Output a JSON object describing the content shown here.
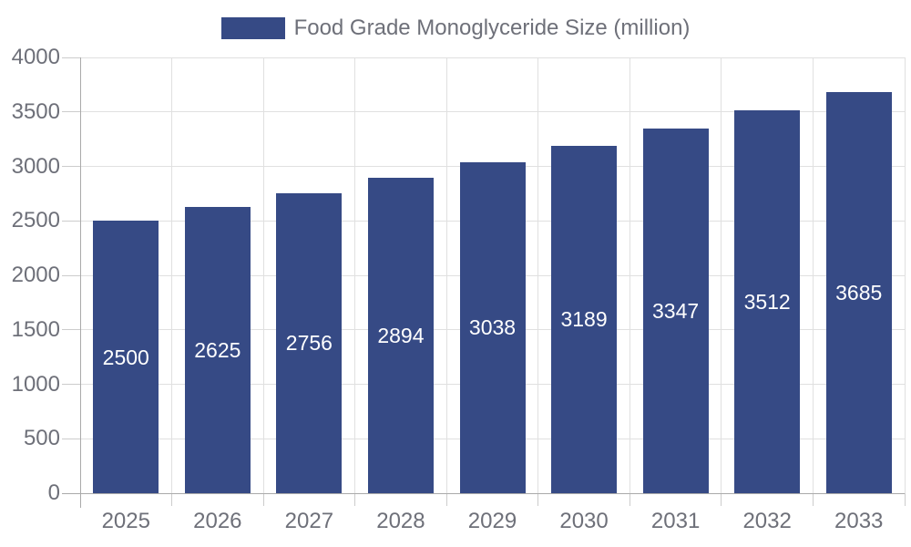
{
  "legend": {
    "label": "Food Grade Monoglyceride Size (million)"
  },
  "colors": {
    "bar": "#364A85",
    "bar_label": "#ffffff",
    "grid": "#e0e0e0",
    "axis": "#aaaaaa",
    "tick": "#cccccc",
    "text": "#6e7079",
    "legend_text": "#6e7079",
    "background": "#ffffff"
  },
  "chart_data": {
    "type": "bar",
    "title": "Food Grade Monoglyceride Size (million)",
    "series_name": "Food Grade Monoglyceride Size (million)",
    "categories": [
      "2025",
      "2026",
      "2027",
      "2028",
      "2029",
      "2030",
      "2031",
      "2032",
      "2033"
    ],
    "values": [
      2500,
      2625,
      2756,
      2894,
      3038,
      3189,
      3347,
      3512,
      3685
    ],
    "xlabel": "",
    "ylabel": "",
    "ylim": [
      0,
      4000
    ],
    "yticks": [
      0,
      500,
      1000,
      1500,
      2000,
      2500,
      3000,
      3500,
      4000
    ],
    "grid": true,
    "legend_position": "top-center",
    "bar_label_position": "inside-center"
  }
}
